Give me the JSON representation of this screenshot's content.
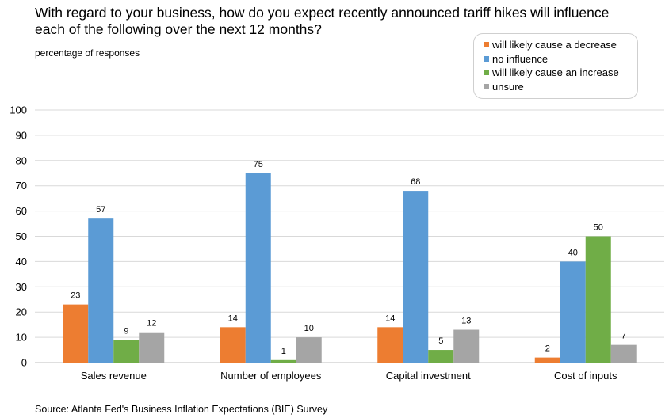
{
  "title_line1": "With regard to your business, how do you expect recently announced tariff hikes will influence",
  "title_line2": "each of the following over the next 12 months?",
  "subtitle": "percentage of responses",
  "source": "Source: Atlanta Fed's Business Inflation Expectations (BIE) Survey",
  "chart_data": {
    "type": "bar",
    "title": "With regard to your business, how do you expect recently announced tariff hikes will influence each of the following over the next 12 months?",
    "ylabel": "percentage of responses",
    "xlabel": "",
    "ylim": [
      0,
      100
    ],
    "yticks": [
      0,
      10,
      20,
      30,
      40,
      50,
      60,
      70,
      80,
      90,
      100
    ],
    "grid": true,
    "legend_position": "top-right",
    "categories": [
      "Sales revenue",
      "Number of employees",
      "Capital investment",
      "Cost of inputs"
    ],
    "series": [
      {
        "name": "will likely cause a decrease",
        "color": "#ED7D31",
        "values": [
          23,
          14,
          14,
          2
        ]
      },
      {
        "name": "no influence",
        "color": "#5B9BD5",
        "values": [
          57,
          75,
          68,
          40
        ]
      },
      {
        "name": "will likely cause an increase",
        "color": "#70AD47",
        "values": [
          9,
          1,
          5,
          50
        ]
      },
      {
        "name": "unsure",
        "color": "#A5A5A5",
        "values": [
          12,
          10,
          13,
          7
        ]
      }
    ]
  }
}
